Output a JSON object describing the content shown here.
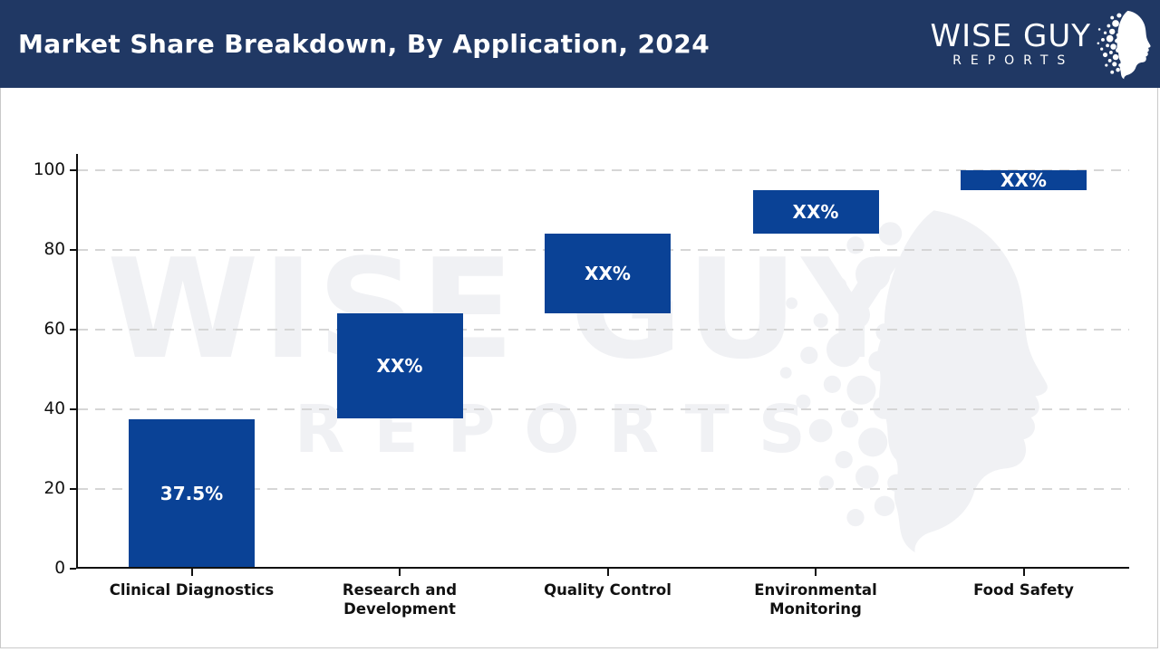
{
  "header": {
    "title": "Market Share Breakdown, By Application, 2024",
    "logo": {
      "line1": "WISE GUY",
      "line2": "REPORTS"
    }
  },
  "watermark": {
    "line1": "WISE GUY",
    "line2": "REPORTS"
  },
  "chart_data": {
    "type": "bar",
    "subtype": "waterfall",
    "title": "Market Share Breakdown, By Application, 2024",
    "categories": [
      "Clinical Diagnostics",
      "Research and Development",
      "Quality Control",
      "Environmental Monitoring",
      "Food Safety"
    ],
    "segments": [
      {
        "category": "Clinical Diagnostics",
        "start": 0,
        "end": 37.5,
        "value": 37.5,
        "display": "37.5%"
      },
      {
        "category": "Research and Development",
        "start": 37.5,
        "end": 64,
        "value": 26.5,
        "display": "XX%"
      },
      {
        "category": "Quality Control",
        "start": 64,
        "end": 84,
        "value": 20,
        "display": "XX%"
      },
      {
        "category": "Environmental Monitoring",
        "start": 84,
        "end": 95,
        "value": 11,
        "display": "XX%"
      },
      {
        "category": "Food Safety",
        "start": 95,
        "end": 100,
        "value": 5,
        "display": "XX%"
      }
    ],
    "yticks": [
      0,
      20,
      40,
      60,
      80,
      100
    ],
    "ylim": [
      0,
      105
    ],
    "xlabel": "",
    "ylabel": "",
    "grid": "horizontal-dashed",
    "legend": "none",
    "bar_color": "#0a4296",
    "value_label_color": "#ffffff"
  },
  "colors": {
    "header_bg": "#203864",
    "bar": "#0a4296",
    "grid": "#d6d6d6",
    "axis": "#111111",
    "watermark": "#f0f1f4",
    "frame_border": "#c9c9c9"
  }
}
